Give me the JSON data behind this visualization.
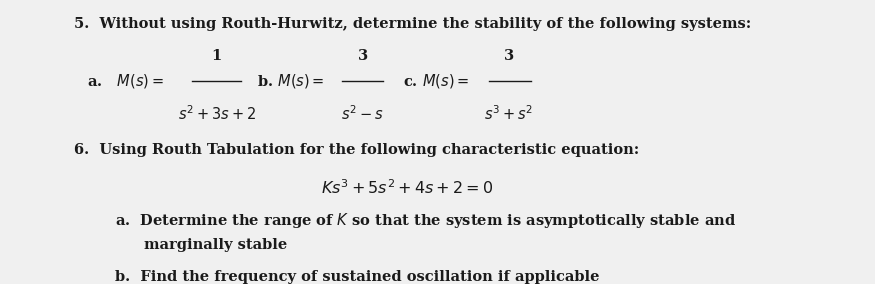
{
  "bg_color": "#f0f0f0",
  "text_color": "#1a1a1a",
  "title5": "5.  Without using Routh-Hurwitz, determine the stability of the following systems:",
  "label_a": "a.",
  "ms_a_prefix": "$M(s) = $",
  "frac_a_num": "1",
  "frac_a_den": "$s^2 + 3s + 2$",
  "label_b": "b.",
  "ms_b_prefix": "$M(s) = $",
  "frac_b_num": "3",
  "frac_b_den": "$s^2 - s$",
  "label_c": "c.",
  "ms_c_prefix": "$M(s) = $",
  "frac_c_num": "3",
  "frac_c_den": "$s^3 + s^2$",
  "title6": "6.  Using Routh Tabulation for the following characteristic equation:",
  "equation": "$Ks^3 + 5s^2 + 4s + 2 = 0$",
  "sub_a": "a.  Determine the range of $K$ so that the system is asymptotically stable and\n       marginally stable",
  "sub_b": "b.  Find the frequency of sustained oscillation if applicable",
  "fontsize_main": 10.5,
  "fontsize_eq": 11.5,
  "fontsize_sub": 10.5
}
